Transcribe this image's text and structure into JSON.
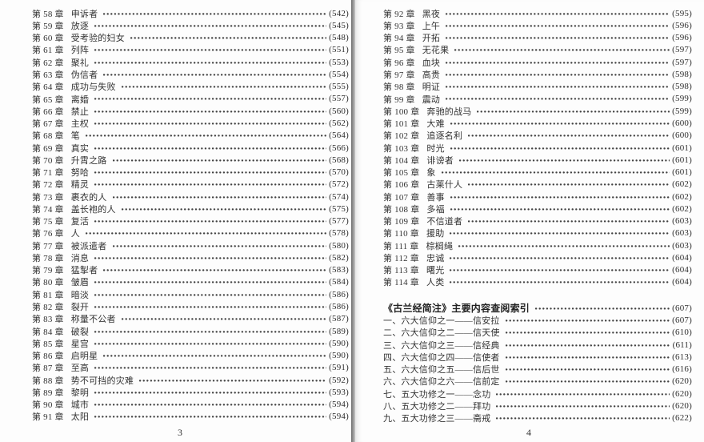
{
  "left_page": {
    "page_number": "3",
    "rows": [
      {
        "label": "第 58 章",
        "title": "申诉者",
        "page": "(542)"
      },
      {
        "label": "第 59 章",
        "title": "放逐",
        "page": "(545)"
      },
      {
        "label": "第 60 章",
        "title": "受考验的妇女",
        "page": "(548)"
      },
      {
        "label": "第 61 章",
        "title": "列阵",
        "page": "(551)"
      },
      {
        "label": "第 62 章",
        "title": "聚礼",
        "page": "(553)"
      },
      {
        "label": "第 63 章",
        "title": "伪信者",
        "page": "(554)"
      },
      {
        "label": "第 64 章",
        "title": "成功与失败",
        "page": "(555)"
      },
      {
        "label": "第 65 章",
        "title": "离婚",
        "page": "(557)"
      },
      {
        "label": "第 66 章",
        "title": "禁止",
        "page": "(560)"
      },
      {
        "label": "第 67 章",
        "title": "主权",
        "page": "(562)"
      },
      {
        "label": "第 68 章",
        "title": "笔",
        "page": "(564)"
      },
      {
        "label": "第 69 章",
        "title": "真实",
        "page": "(566)"
      },
      {
        "label": "第 70 章",
        "title": "升霄之路",
        "page": "(568)"
      },
      {
        "label": "第 71 章",
        "title": "努哈",
        "page": "(570)"
      },
      {
        "label": "第 72 章",
        "title": "精灵",
        "page": "(572)"
      },
      {
        "label": "第 73 章",
        "title": "裹衣的人",
        "page": "(574)"
      },
      {
        "label": "第 74 章",
        "title": "盖长袍的人",
        "page": "(575)"
      },
      {
        "label": "第 75 章",
        "title": "复活",
        "page": "(577)"
      },
      {
        "label": "第 76 章",
        "title": "人",
        "page": "(578)"
      },
      {
        "label": "第 77 章",
        "title": "被派遣者",
        "page": "(580)"
      },
      {
        "label": "第 78 章",
        "title": "消息",
        "page": "(582)"
      },
      {
        "label": "第 79 章",
        "title": "猛掣者",
        "page": "(583)"
      },
      {
        "label": "第 80 章",
        "title": "皱眉",
        "page": "(584)"
      },
      {
        "label": "第 81 章",
        "title": "暗淡",
        "page": "(586)"
      },
      {
        "label": "第 82 章",
        "title": "裂开",
        "page": "(586)"
      },
      {
        "label": "第 83 章",
        "title": "称量不公者",
        "page": "(587)"
      },
      {
        "label": "第 84 章",
        "title": "破裂",
        "page": "(589)"
      },
      {
        "label": "第 85 章",
        "title": "星宫",
        "page": "(590)"
      },
      {
        "label": "第 86 章",
        "title": "启明星",
        "page": "(590)"
      },
      {
        "label": "第 87 章",
        "title": "至高",
        "page": "(591)"
      },
      {
        "label": "第 88 章",
        "title": "势不可挡的灾难",
        "page": "(592)"
      },
      {
        "label": "第 89 章",
        "title": "黎明",
        "page": "(593)"
      },
      {
        "label": "第 90 章",
        "title": "城市",
        "page": "(594)"
      },
      {
        "label": "第 91 章",
        "title": "太阳",
        "page": "(594)"
      }
    ]
  },
  "right_page": {
    "page_number": "4",
    "rows": [
      {
        "label": "第 92 章",
        "title": "黑夜",
        "page": "(595)"
      },
      {
        "label": "第 93 章",
        "title": "上午",
        "page": "(596)"
      },
      {
        "label": "第 94 章",
        "title": "开拓",
        "page": "(596)"
      },
      {
        "label": "第 95 章",
        "title": "无花果",
        "page": "(597)"
      },
      {
        "label": "第 96 章",
        "title": "血块",
        "page": "(597)"
      },
      {
        "label": "第 97 章",
        "title": "高贵",
        "page": "(598)"
      },
      {
        "label": "第 98 章",
        "title": "明证",
        "page": "(598)"
      },
      {
        "label": "第 99 章",
        "title": "震动",
        "page": "(599)"
      },
      {
        "label": "第 100 章",
        "title": "奔驰的战马",
        "page": "(599)"
      },
      {
        "label": "第 101 章",
        "title": "大难",
        "page": "(600)"
      },
      {
        "label": "第 102 章",
        "title": "追逐名利",
        "page": "(600)"
      },
      {
        "label": "第 103 章",
        "title": "时光",
        "page": "(601)"
      },
      {
        "label": "第 104 章",
        "title": "诽谤者",
        "page": "(601)"
      },
      {
        "label": "第 105 章",
        "title": "象",
        "page": "(601)"
      },
      {
        "label": "第 106 章",
        "title": "古莱什人",
        "page": "(602)"
      },
      {
        "label": "第 107 章",
        "title": "善事",
        "page": "(602)"
      },
      {
        "label": "第 108 章",
        "title": "多福",
        "page": "(602)"
      },
      {
        "label": "第 109 章",
        "title": "不信道者",
        "page": "(603)"
      },
      {
        "label": "第 110 章",
        "title": "援助",
        "page": "(603)"
      },
      {
        "label": "第 111 章",
        "title": "棕榈绳",
        "page": "(603)"
      },
      {
        "label": "第 112 章",
        "title": "忠诚",
        "page": "(604)"
      },
      {
        "label": "第 113 章",
        "title": "曙光",
        "page": "(604)"
      },
      {
        "label": "第 114 章",
        "title": "人类",
        "page": "(604)"
      }
    ],
    "index_rows": [
      {
        "title": "《古兰经简注》主要内容查阅索引",
        "page": "(607)",
        "bold": true
      },
      {
        "title": "一、六大信仰之一——信安拉",
        "page": "(607)"
      },
      {
        "title": "二、六大信仰之二——信天使",
        "page": "(610)"
      },
      {
        "title": "三、六大信仰之三——信经典",
        "page": "(611)"
      },
      {
        "title": "四、六大信仰之四——信使者",
        "page": "(613)"
      },
      {
        "title": "五、六大信仰之五——信后世",
        "page": "(616)"
      },
      {
        "title": "六、六大信仰之六——信前定",
        "page": "(620)"
      },
      {
        "title": "七、五大功修之一——念功",
        "page": "(620)"
      },
      {
        "title": "八、五大功修之二——拜功",
        "page": "(620)"
      },
      {
        "title": "九、五大功修之三——斋戒",
        "page": "(622)"
      }
    ]
  }
}
